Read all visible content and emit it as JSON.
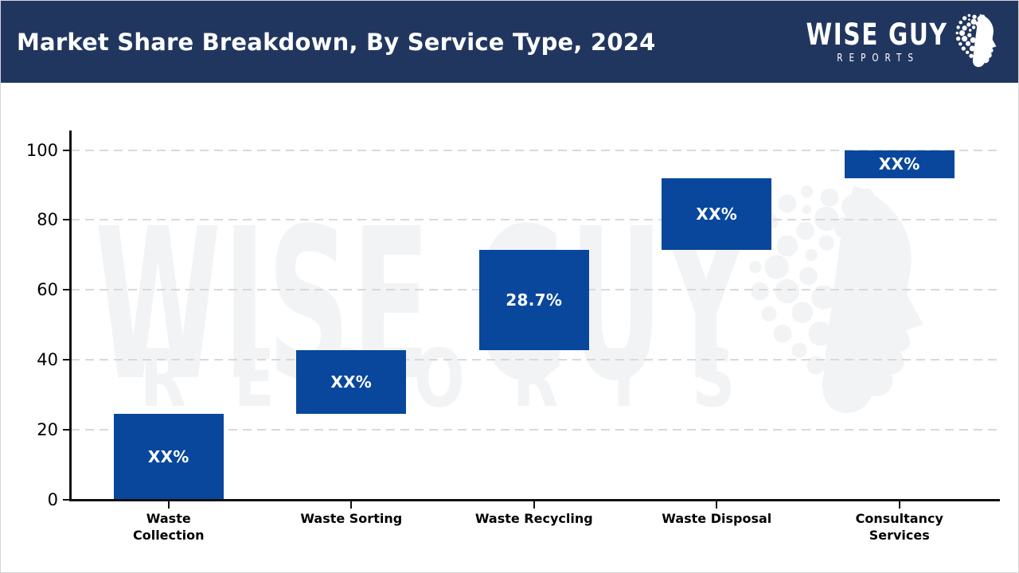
{
  "header": {
    "title": "Market Share Breakdown, By Service Type, 2024",
    "logo": {
      "wordmark": "WISE GUY",
      "subtext": "REPORTS"
    }
  },
  "watermark": {
    "line1": "WISE GUY",
    "line2": "REPORTS"
  },
  "chart_data": {
    "type": "bar",
    "subtype": "floating-waterfall-segments",
    "title": "Market Share Breakdown, By Service Type, 2024",
    "xlabel": "",
    "ylabel": "",
    "categories": [
      "Waste Collection",
      "Waste Sorting",
      "Waste Recycling",
      "Waste Disposal",
      "Consultancy Services"
    ],
    "segments": [
      {
        "category": "Waste Collection",
        "start": 0,
        "end": 24.5,
        "label": "XX%"
      },
      {
        "category": "Waste Sorting",
        "start": 24.5,
        "end": 42.7,
        "label": "XX%"
      },
      {
        "category": "Waste Recycling",
        "start": 42.7,
        "end": 71.4,
        "label": "28.7%"
      },
      {
        "category": "Waste Disposal",
        "start": 71.4,
        "end": 92,
        "label": "XX%"
      },
      {
        "category": "Consultancy Services",
        "start": 92,
        "end": 100,
        "label": "XX%"
      }
    ],
    "yticks": [
      0,
      20,
      40,
      60,
      80,
      100
    ],
    "ylim": [
      0,
      104
    ],
    "grid": "horizontal-dashed",
    "legend": "none",
    "colors": {
      "bar": "#09479c",
      "bar_label": "#ffffff",
      "header_bg": "#21365f",
      "gridline": "#d9d9d9",
      "axis": "#111111",
      "watermark": "#f2f3f5"
    }
  }
}
